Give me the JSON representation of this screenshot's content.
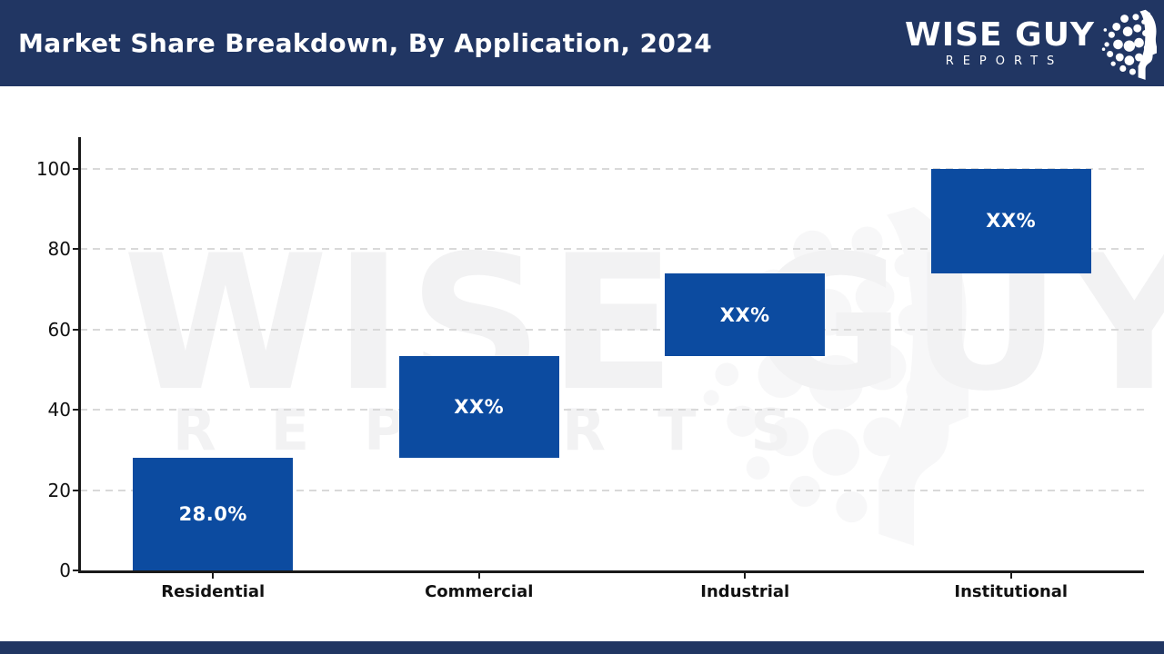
{
  "header": {
    "title": "Market Share Breakdown, By Application, 2024",
    "bg_color": "#213663",
    "logo": {
      "line1": "WISE GUY",
      "line2": "REPORTS"
    }
  },
  "watermark": {
    "line1": "WISE GUY",
    "line2": "REPORTS"
  },
  "footer": {
    "bg_color": "#213663"
  },
  "chart_data": {
    "type": "bar",
    "subtype": "floating-waterfall",
    "title": "Market Share Breakdown, By Application, 2024",
    "categories": [
      "Residential",
      "Commercial",
      "Industrial",
      "Institutional"
    ],
    "series": [
      {
        "name": "Market Share (%)",
        "segments": [
          {
            "start": 0,
            "end": 28
          },
          {
            "start": 28,
            "end": 53.3
          },
          {
            "start": 53.3,
            "end": 74
          },
          {
            "start": 74,
            "end": 100
          }
        ]
      }
    ],
    "bar_labels": [
      "28.0%",
      "XX%",
      "XX%",
      "XX%"
    ],
    "yticks": [
      0,
      20,
      40,
      60,
      80,
      100
    ],
    "ylim": [
      0,
      107
    ],
    "xlabel": "",
    "ylabel": "",
    "grid": "horizontal-dashed",
    "legend": "none",
    "bar_color": "#0C4BA0",
    "bar_label_color": "#ffffff",
    "axis_color": "#1a1a1a",
    "gridline_color": "#d9d9d9"
  }
}
